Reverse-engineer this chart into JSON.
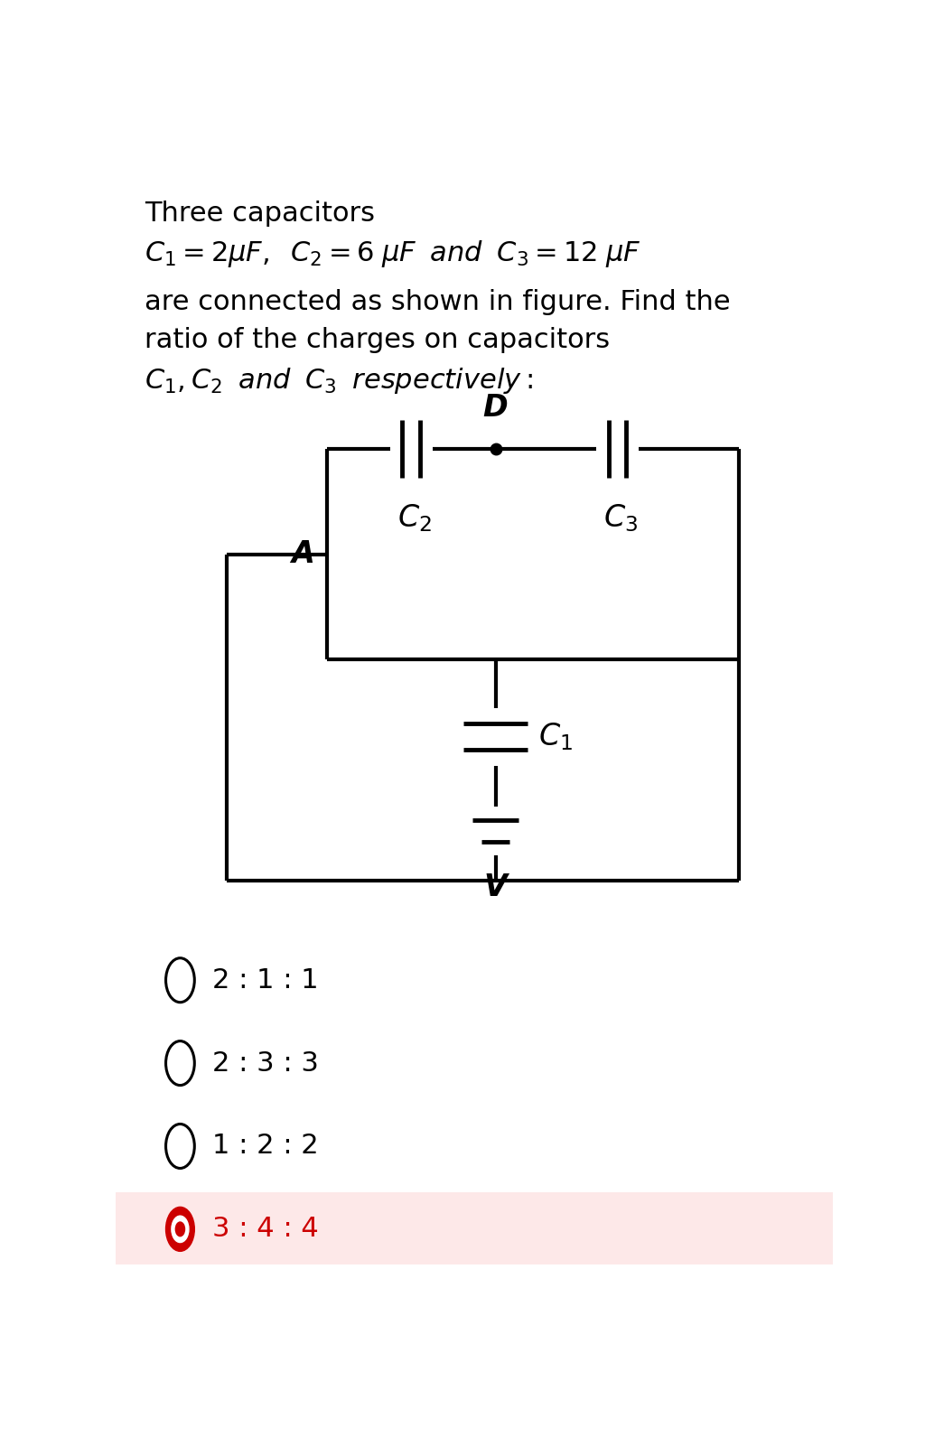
{
  "bg_color": "#ffffff",
  "text_color": "#000000",
  "line_color": "#000000",
  "line_width": 3.0,
  "title_line1": "Three capacitors",
  "title_line2": "$C_1 = 2\\mu F,\\;\\; C_2 = 6 \\;\\mu F \\;\\; and \\;\\; C_3 = 12\\;\\mu F$",
  "title_line3": "are connected as shown in figure. Find the",
  "title_line4": "ratio of the charges on capacitors",
  "title_line5": "$C_1, C_2 \\;\\; and \\;\\; C_3 \\;\\; respectively:$",
  "options": [
    "2 : 1 : 1",
    "2 : 3 : 3",
    "1 : 2 : 2",
    "3 : 4 : 4"
  ],
  "correct_option": 3,
  "correct_bg": "#fde8e8",
  "correct_color": "#cc0000",
  "option_font_size": 22
}
